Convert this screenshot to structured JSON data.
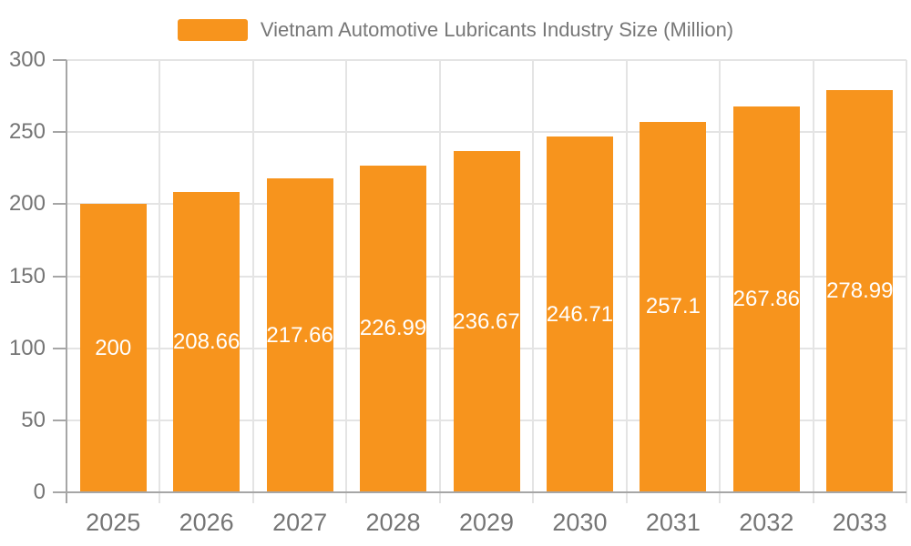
{
  "chart_data": {
    "type": "bar",
    "title": "",
    "legend": "Vietnam Automotive Lubricants Industry Size (Million)",
    "legend_position": "top",
    "categories": [
      "2025",
      "2026",
      "2027",
      "2028",
      "2029",
      "2030",
      "2031",
      "2032",
      "2033"
    ],
    "series": [
      {
        "name": "Vietnam Automotive Lubricants Industry Size (Million)",
        "values": [
          200,
          208.66,
          217.66,
          226.99,
          236.67,
          246.71,
          257.1,
          267.86,
          278.99
        ]
      }
    ],
    "xlabel": "",
    "ylabel": "",
    "ylim": [
      0,
      300
    ],
    "y_ticks": [
      0,
      50,
      100,
      150,
      200,
      250,
      300
    ],
    "grid": true,
    "value_labels_shown": true
  },
  "colors": {
    "bar": "#F7941D",
    "grid_line": "#E4E4E4",
    "axis_line": "#A6A6A6",
    "x_tick": "#D6D6D6",
    "axis_label": "#757575",
    "legend_text": "#777777",
    "value_label": "#FFFFFF",
    "background": "#FFFFFF"
  }
}
